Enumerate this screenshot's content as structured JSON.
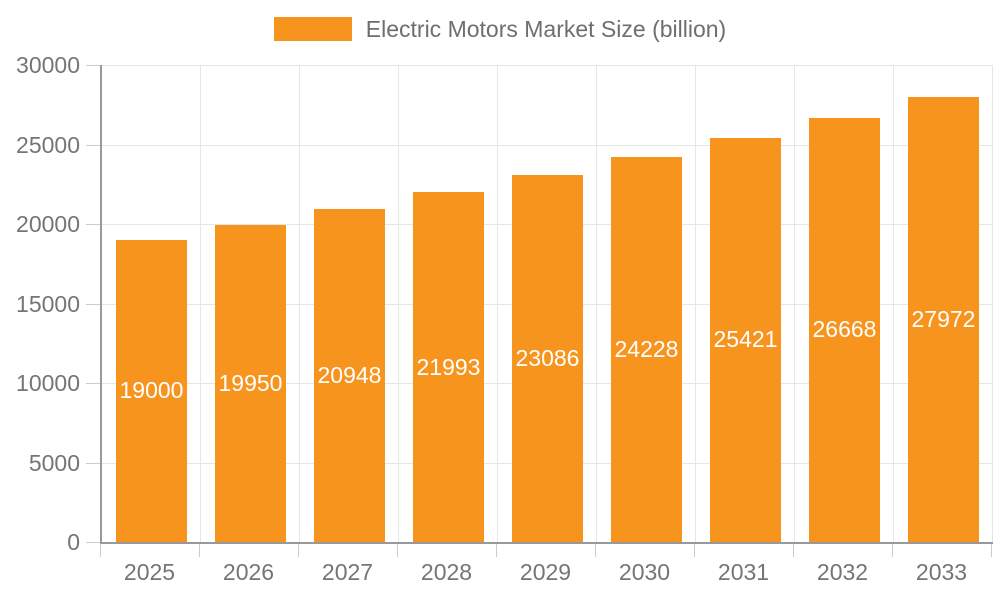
{
  "legend": {
    "label": "Electric Motors Market Size (billion)"
  },
  "chart_data": {
    "type": "bar",
    "title": "Electric Motors Market Size (billion)",
    "series_name": "Electric Motors Market Size (billion)",
    "categories": [
      "2025",
      "2026",
      "2027",
      "2028",
      "2029",
      "2030",
      "2031",
      "2032",
      "2033"
    ],
    "values": [
      19000,
      19950,
      20948,
      21993,
      23086,
      24228,
      25421,
      26668,
      27972
    ],
    "xlabel": "",
    "ylabel": "",
    "ylim": [
      0,
      30000
    ],
    "yticks": [
      0,
      5000,
      10000,
      15000,
      20000,
      25000,
      30000
    ],
    "grid": true,
    "legend_position": "top",
    "bar_color": "#F7941E",
    "value_label_color": "#FFFFFF",
    "grid_color": "#E6E6E6",
    "axis_line_color": "#999999",
    "tick_color": "#CCCCCC",
    "axis_text_color": "#757575",
    "legend_text_color": "#6E6E6E"
  }
}
